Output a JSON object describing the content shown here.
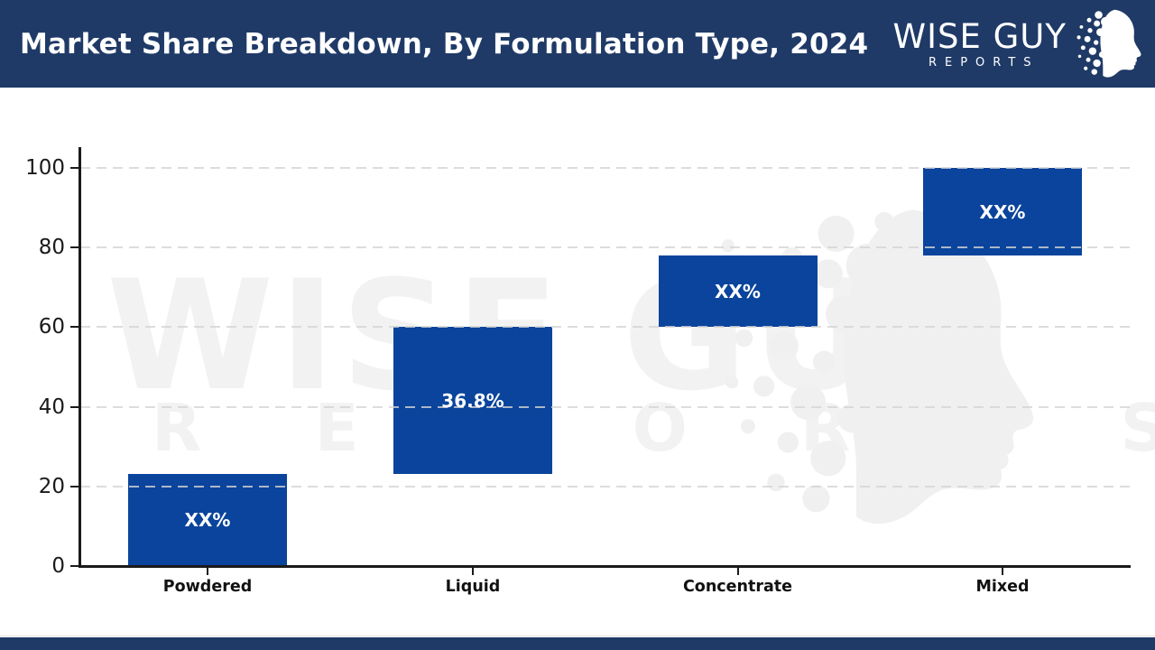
{
  "header": {
    "title": "Market Share Breakdown, By Formulation Type, 2024",
    "logo": {
      "line1": "WISE GUY",
      "line2": "REPORTS"
    }
  },
  "watermark": {
    "line1": "WISE GUY",
    "line2": "R E P O R T S"
  },
  "chart_data": {
    "type": "bar",
    "subtype": "waterfall",
    "title": "Market Share Breakdown, By Formulation Type, 2024",
    "categories": [
      "Powdered",
      "Liquid",
      "Concentrate",
      "Mixed"
    ],
    "bars": [
      {
        "category": "Powdered",
        "start": 0,
        "end": 23.2,
        "label": "XX%"
      },
      {
        "category": "Liquid",
        "start": 23.2,
        "end": 60,
        "label": "36.8%"
      },
      {
        "category": "Concentrate",
        "start": 60,
        "end": 78,
        "label": "XX%"
      },
      {
        "category": "Mixed",
        "start": 78,
        "end": 100,
        "label": "XX%"
      }
    ],
    "xlabel": "",
    "ylabel": "",
    "ylim": [
      0,
      100
    ],
    "yticks": [
      0,
      20,
      40,
      60,
      80,
      100
    ],
    "grid": "horizontal-dashed",
    "legend": null,
    "bar_color": "#0a449c",
    "bar_label_color": "#ffffff"
  },
  "colors": {
    "header_bg": "#1f3a67",
    "footer_bg": "#1f3a67",
    "bar": "#0a449c",
    "axis": "#1a1a1a",
    "grid": "#d4d4d4",
    "watermark": "#f2f2f2"
  }
}
